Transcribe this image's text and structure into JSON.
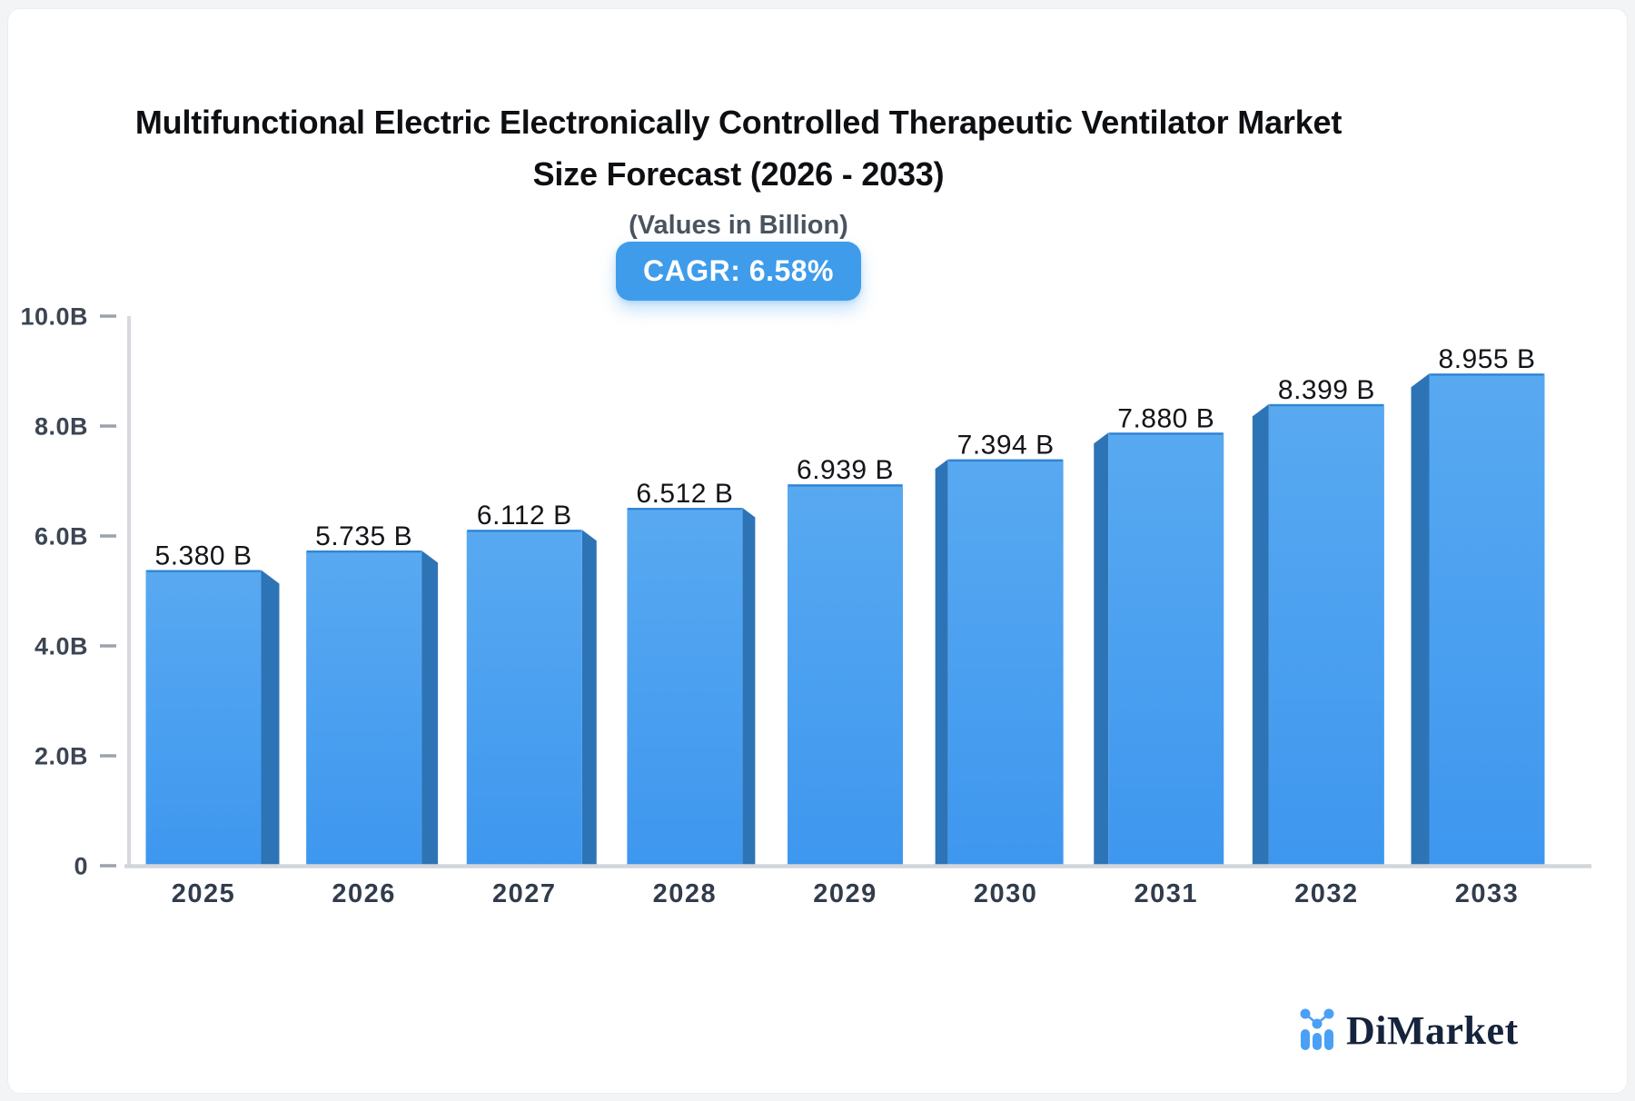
{
  "header": {
    "title_line1": "Multifunctional Electric Electronically Controlled Therapeutic Ventilator Market",
    "title_line2": "Size Forecast (2026 - 2033)",
    "subtitle": "(Values in Billion)",
    "cagr_label": "CAGR: 6.58%"
  },
  "chart_data": {
    "type": "bar",
    "title": "Multifunctional Electric Electronically Controlled Therapeutic Ventilator Market Size Forecast (2026 - 2033)",
    "subtitle": "(Values in Billion)",
    "cagr_percent": 6.58,
    "categories": [
      "2025",
      "2026",
      "2027",
      "2028",
      "2029",
      "2030",
      "2031",
      "2032",
      "2033"
    ],
    "values": [
      5.38,
      5.735,
      6.112,
      6.512,
      6.939,
      7.394,
      7.88,
      8.399,
      8.955
    ],
    "value_labels": [
      "5.380 B",
      "5.735 B",
      "6.112 B",
      "6.512 B",
      "6.939 B",
      "7.394 B",
      "7.880 B",
      "8.399 B",
      "8.955 B"
    ],
    "unit": "B",
    "ylim": [
      0,
      10
    ],
    "ytick_values": [
      10,
      8,
      6,
      4,
      2,
      0
    ],
    "ytick_labels": [
      "10.0B",
      "8.0B",
      "6.0B",
      "4.0B",
      "2.0B",
      "0"
    ],
    "grid": false,
    "legend": "none",
    "style": "3d-perspective-bars",
    "colors": {
      "bar_face_top": "#58a9f0",
      "bar_face_bottom": "#3e97ef",
      "bar_top_edge": "#2f81d1",
      "bar_side": "#2d74b6",
      "axis_line": "#d6d9de",
      "baseline": "#d2d6db",
      "tick_dash": "#9aa2ad",
      "ytick_text": "#3c4552",
      "xtick_text": "#313c4c",
      "value_text": "#131519",
      "badge_bg": "#3f9ceb"
    }
  },
  "footer": {
    "brand": "DiMarket",
    "logo_icon": "bar-chart-dots-icon"
  }
}
